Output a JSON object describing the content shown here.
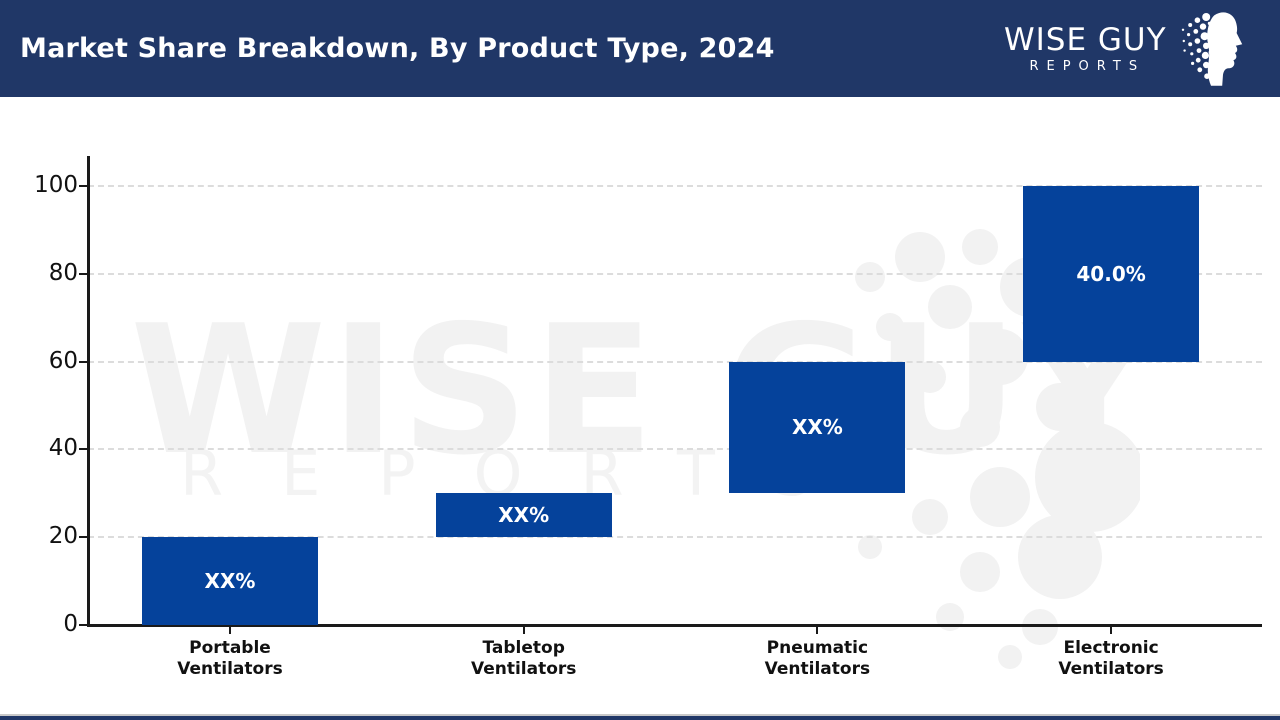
{
  "header": {
    "title": "Market Share Breakdown, By Product Type, 2024",
    "bg_color": "#203767",
    "logo": {
      "line1": "WISE GUY",
      "line2": "REPORTS"
    }
  },
  "watermark": {
    "line1": "WISE GUY",
    "line2": "REPORTS"
  },
  "chart_data": {
    "type": "bar",
    "subtype": "waterfall",
    "title": "Market Share Breakdown, By Product Type, 2024",
    "categories": [
      "Portable\nVentilators",
      "Tabletop\nVentilators",
      "Pneumatic\nVentilators",
      "Electronic\nVentilators"
    ],
    "segments": [
      {
        "category": "Portable Ventilators",
        "start": 0,
        "end": 20,
        "label": "XX%"
      },
      {
        "category": "Tabletop Ventilators",
        "start": 20,
        "end": 30,
        "label": "XX%"
      },
      {
        "category": "Pneumatic Ventilators",
        "start": 30,
        "end": 60,
        "label": "XX%"
      },
      {
        "category": "Electronic Ventilators",
        "start": 60,
        "end": 100,
        "label": "40.0%"
      }
    ],
    "y_ticks": [
      0,
      20,
      40,
      60,
      80,
      100
    ],
    "ylim": [
      0,
      106
    ],
    "grid": "dashed horizontal",
    "legend": "none",
    "bar_color": "#05429B",
    "bar_label_color": "#ffffff",
    "axis_color": "#1a1a1a"
  },
  "footer": {
    "accent_color": "#203767"
  }
}
